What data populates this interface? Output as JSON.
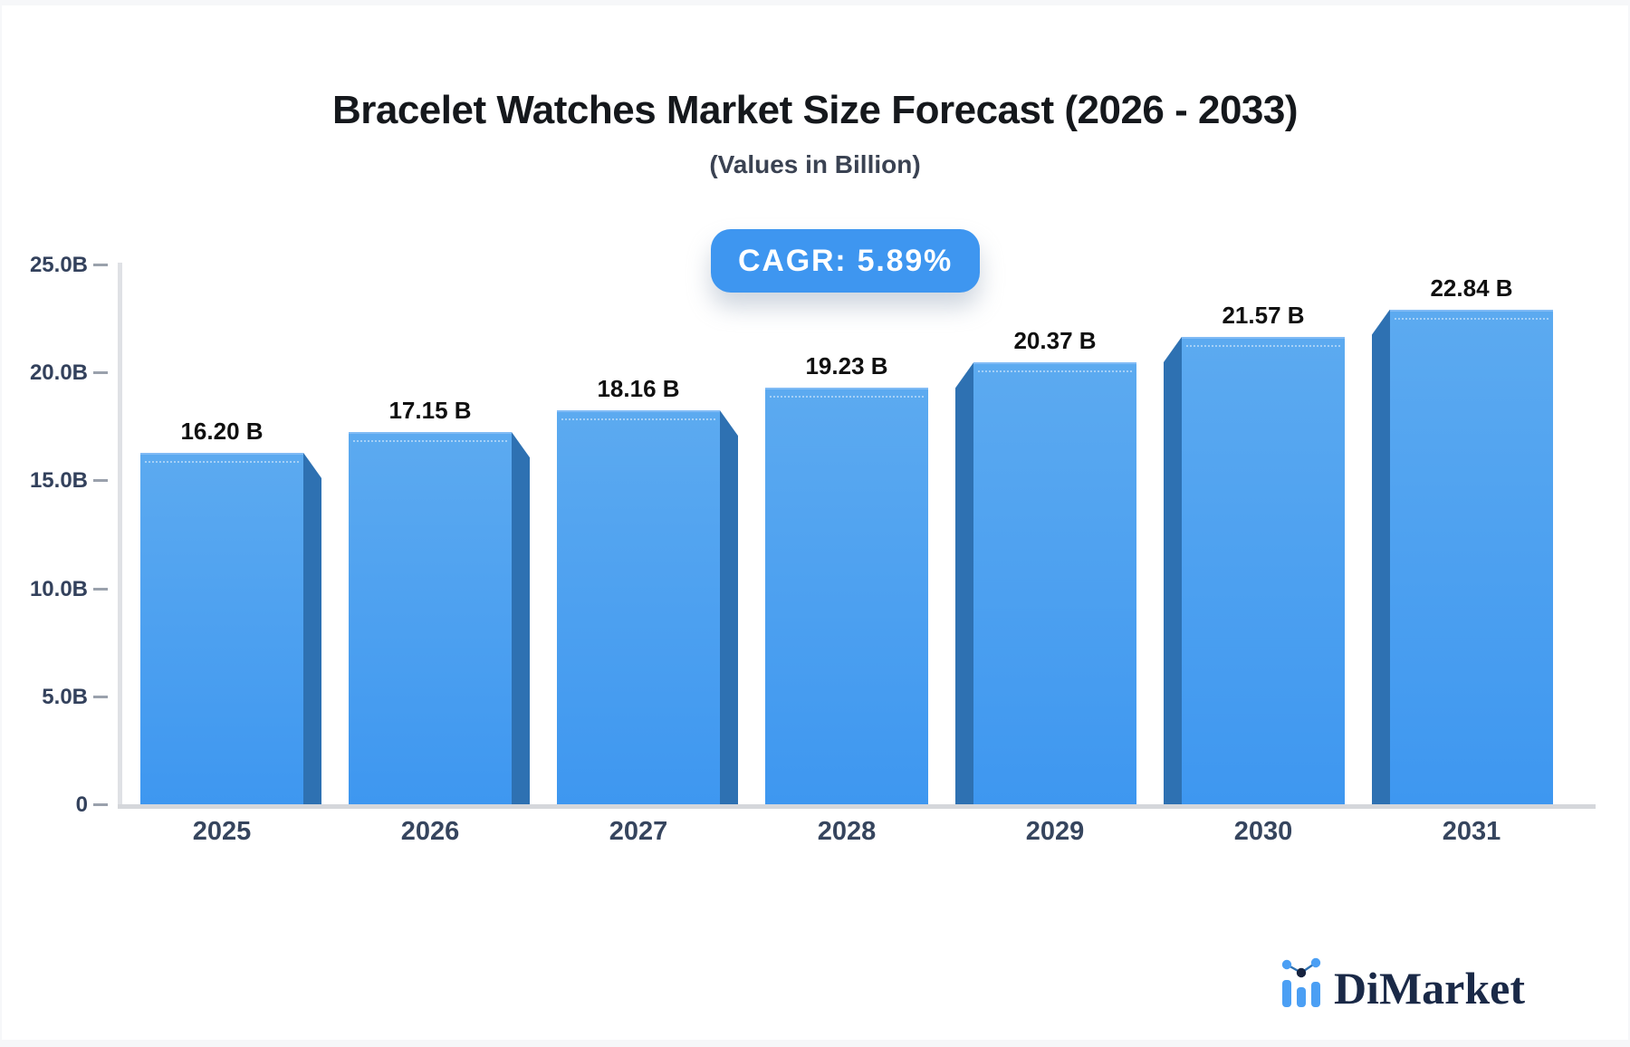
{
  "page": {
    "title": "Bracelet Watches Market Size Forecast (2026 - 2033)",
    "subtitle": "(Values in Billion)",
    "cagr_badge": "CAGR: 5.89%",
    "brand": "DiMarket"
  },
  "colors": {
    "bar_face_top": "#5caaf0",
    "bar_face_bottom": "#3e97f0",
    "bar_side": "#2e71b2",
    "badge_bg": "#3e96f0",
    "badge_text": "#ffffff",
    "axis_line": "#dfe1e5",
    "baseline": "#d5d7db",
    "tick_label": "#33415c",
    "value_label": "#101010",
    "brand_text": "#1a2947",
    "brand_icon_blue": "#4b9ff4",
    "brand_icon_dark": "#16233f"
  },
  "chart_data": {
    "type": "bar",
    "title": "Bracelet Watches Market Size Forecast (2026 - 2033)",
    "subtitle": "(Values in Billion)",
    "unit": "Billion",
    "cagr_pct": 5.89,
    "categories": [
      "2025",
      "2026",
      "2027",
      "2028",
      "2029",
      "2030",
      "2031"
    ],
    "values": [
      16.2,
      17.15,
      18.16,
      19.23,
      20.37,
      21.57,
      22.84
    ],
    "value_labels": [
      "16.20 B",
      "17.15 B",
      "18.16 B",
      "19.23 B",
      "20.37 B",
      "21.57 B",
      "22.84 B"
    ],
    "ylim": [
      0,
      25
    ],
    "yticks": [
      {
        "value": 25,
        "label": "25.0B"
      },
      {
        "value": 20,
        "label": "20.0B"
      },
      {
        "value": 15,
        "label": "15.0B"
      },
      {
        "value": 10,
        "label": "10.0B"
      },
      {
        "value": 5,
        "label": "5.0B"
      },
      {
        "value": 0,
        "label": "0"
      }
    ],
    "grid": false,
    "legend": false,
    "bar_style": "3d-beveled",
    "bevel": "outer bars shade away from center: left bars dark-right, center flat, right bars dark-left"
  }
}
